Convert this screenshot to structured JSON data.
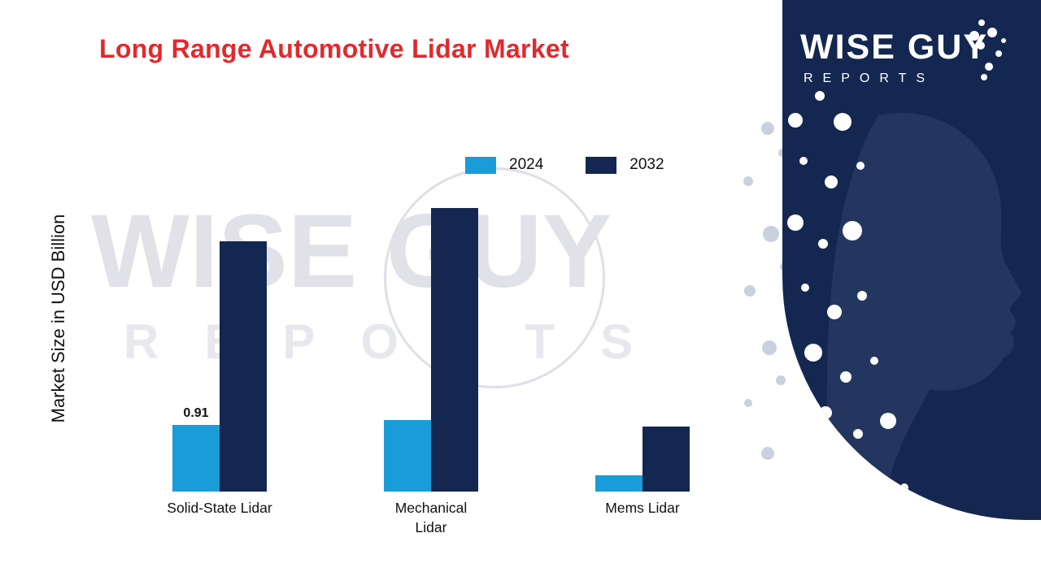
{
  "header": {
    "title": "Long Range Automotive Lidar Market"
  },
  "brand": {
    "name_top": "WISE GUY",
    "name_bottom": "REPORTS"
  },
  "watermark": {
    "line1": "WISE GUY",
    "line2": "REPORTS"
  },
  "colors": {
    "series_2024": "#199cd8",
    "series_2032": "#132750",
    "title_red": "#e02a2e",
    "panel_navy": "#132750",
    "watermark_gray": "#e1e1e8"
  },
  "chart_data": {
    "type": "bar",
    "title": "Long Range Automotive Lidar Market",
    "ylabel": "Market Size in USD Billion",
    "categories": [
      "Solid-State Lidar",
      "Mechanical Lidar",
      "Mems Lidar"
    ],
    "series": [
      {
        "name": "2024",
        "color": "#199cd8",
        "values": [
          0.91,
          0.98,
          0.22
        ]
      },
      {
        "name": "2032",
        "color": "#132750",
        "values": [
          3.42,
          3.88,
          0.89
        ]
      }
    ],
    "bar_value_label": {
      "text": "0.91",
      "series_index": 0,
      "category_index": 0
    },
    "ylim": [
      0,
      4
    ],
    "grid": false,
    "legend_position": "top-center"
  }
}
